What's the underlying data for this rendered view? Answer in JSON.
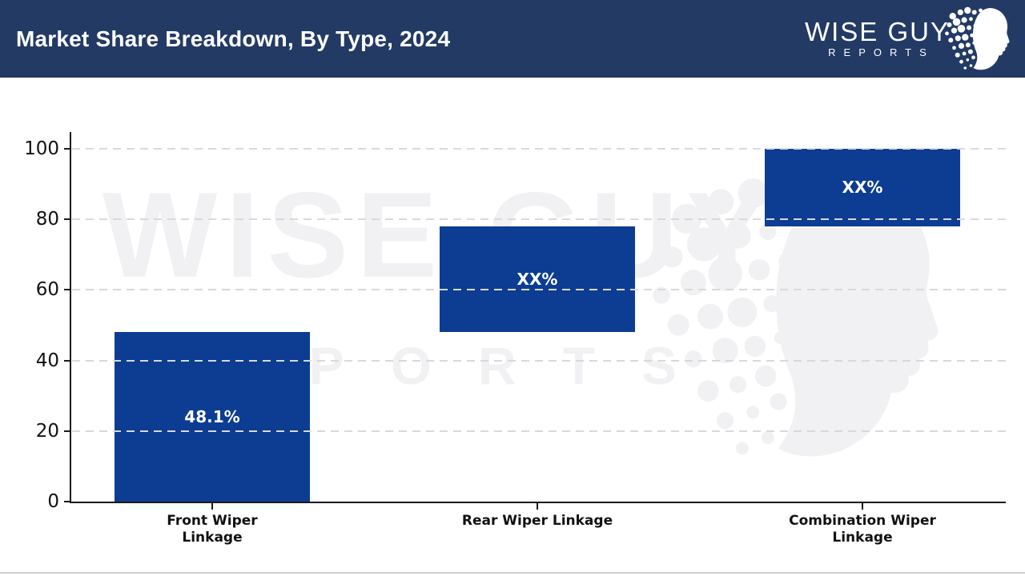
{
  "header": {
    "title": "Market Share Breakdown, By Type, 2024",
    "logo": {
      "wordmark": "WISE GUY",
      "subtext": "REPORTS"
    }
  },
  "watermark": {
    "wordmark": "WISE GUY",
    "subtext": "REPORTS"
  },
  "chart_data": {
    "type": "bar",
    "subtype": "stacked-waterfall",
    "title": "Market Share Breakdown, By Type, 2024",
    "categories": [
      "Front Wiper Linkage",
      "Rear Wiper Linkage",
      "Combination Wiper Linkage"
    ],
    "category_lines": [
      [
        "Front Wiper",
        "Linkage"
      ],
      [
        "Rear Wiper Linkage"
      ],
      [
        "Combination Wiper",
        "Linkage"
      ]
    ],
    "segments": [
      {
        "category": "Front Wiper Linkage",
        "label": "48.1%",
        "start": 0,
        "end": 48.1
      },
      {
        "category": "Rear Wiper Linkage",
        "label": "XX%",
        "start": 48.1,
        "end": 78.1
      },
      {
        "category": "Combination Wiper Linkage",
        "label": "XX%",
        "start": 78.1,
        "end": 100
      }
    ],
    "xlabel": "",
    "ylabel": "",
    "ylim": [
      0,
      100
    ],
    "yticks": [
      0,
      20,
      40,
      60,
      80,
      100
    ],
    "grid": "horizontal-dashed",
    "legend": "none",
    "colors": {
      "bar": "#0c3d92",
      "bar_label": "#ffffff",
      "grid": "#d9d9d9",
      "axis": "#1a1a1a",
      "header_bg": "#223a64",
      "header_text": "#ffffff",
      "watermark": "#f1f1f4"
    }
  }
}
